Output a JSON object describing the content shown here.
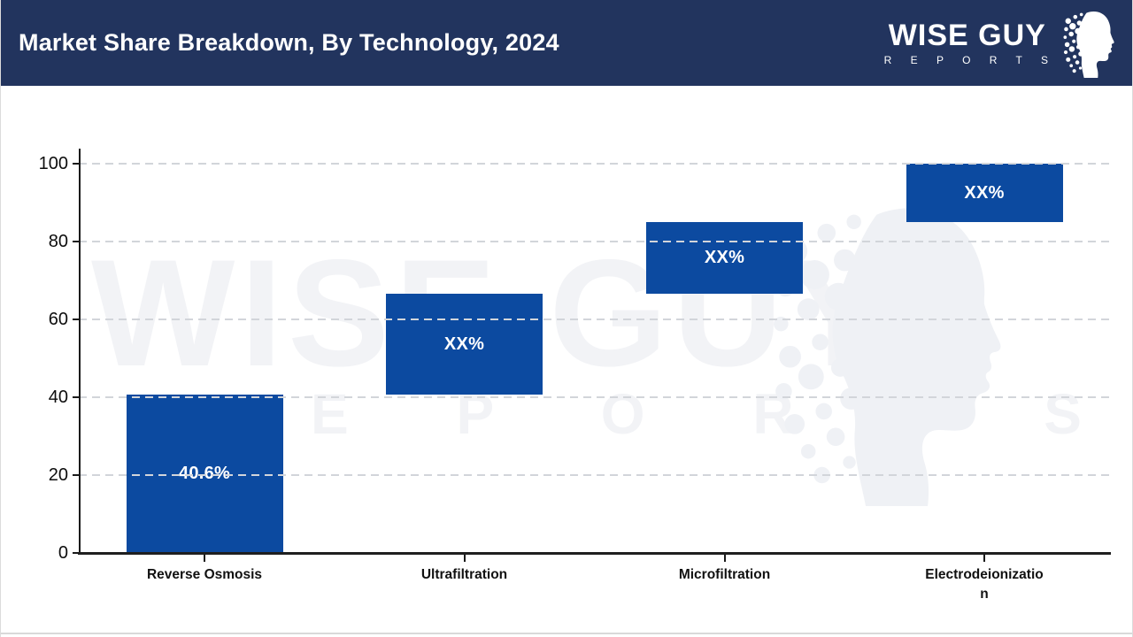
{
  "header": {
    "title": "Market Share Breakdown, By Technology, 2024",
    "logo": {
      "name": "WISE GUY",
      "sub": "R E P O R T S"
    }
  },
  "watermark": {
    "line1": "WISE GUY",
    "line2": "R E P O R T S"
  },
  "chart_data": {
    "type": "bar",
    "subtype": "waterfall",
    "title": "Market Share Breakdown, By Technology, 2024",
    "categories": [
      "Reverse Osmosis",
      "Ultrafiltration",
      "Microfiltration",
      "Electrodeionization"
    ],
    "segments": [
      {
        "category": "Reverse Osmosis",
        "start": 0,
        "end": 40.6,
        "label": "40.6%"
      },
      {
        "category": "Ultrafiltration",
        "start": 40.6,
        "end": 66.5,
        "label": "XX%"
      },
      {
        "category": "Microfiltration",
        "start": 66.5,
        "end": 85,
        "label": "XX%"
      },
      {
        "category": "Electrodeionization",
        "start": 85,
        "end": 100,
        "label": "XX%"
      }
    ],
    "xlabel": "",
    "ylabel": "",
    "ylim": [
      0,
      100
    ],
    "yticks": [
      0,
      20,
      40,
      60,
      80,
      100
    ],
    "grid": "horizontal-dashed",
    "legend": "none"
  },
  "colors": {
    "header_bg": "#22345E",
    "bar": "#0C4AA0",
    "bar_label": "#FFFFFF",
    "grid": "#D2D5DA",
    "axis": "#1A1A1A",
    "watermark": "#F2F3F6"
  }
}
